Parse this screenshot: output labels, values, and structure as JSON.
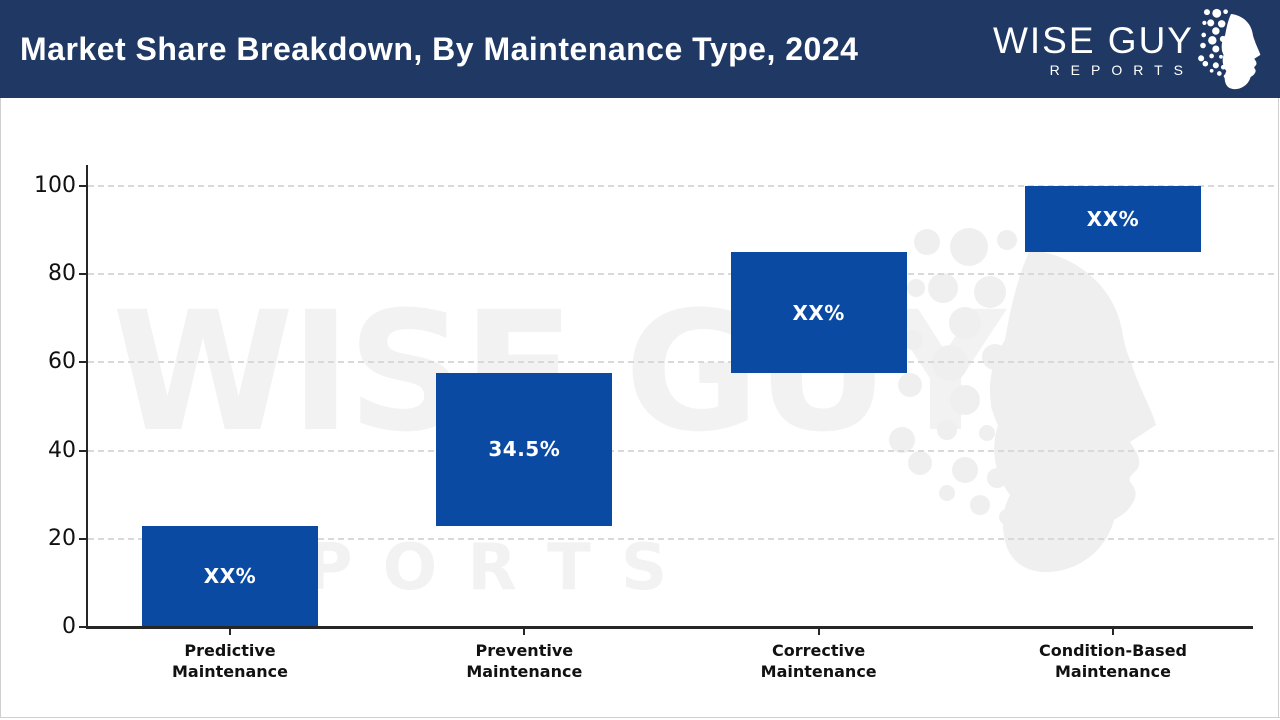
{
  "header": {
    "title": "Market Share Breakdown, By Maintenance Type, 2024",
    "logo": {
      "line1": "WISE GUY",
      "line2": "REPORTS"
    }
  },
  "watermark": {
    "line1": "WISE GUY",
    "line2": "R E P O R T S"
  },
  "colors": {
    "header_bg": "#1f3864",
    "bar": "#0b4aa2",
    "grid": "#d9d9d9",
    "axis": "#262626",
    "watermark": "#f2f2f2",
    "border": "#cfcfcf",
    "title_text": "#ffffff"
  },
  "chart_data": {
    "type": "bar",
    "subtype": "waterfall",
    "title": "Market Share Breakdown, By Maintenance Type, 2024",
    "categories": [
      "Predictive Maintenance",
      "Preventive Maintenance",
      "Corrective Maintenance",
      "Condition-Based Maintenance"
    ],
    "category_lines": [
      [
        "Predictive",
        "Maintenance"
      ],
      [
        "Preventive",
        "Maintenance"
      ],
      [
        "Corrective",
        "Maintenance"
      ],
      [
        "Condition-Based",
        "Maintenance"
      ]
    ],
    "segments": [
      {
        "category": "Predictive Maintenance",
        "label": "XX%",
        "start": 0,
        "end": 23,
        "value_estimated": 23
      },
      {
        "category": "Preventive Maintenance",
        "label": "34.5%",
        "start": 23,
        "end": 57.5,
        "value_estimated": 34.5
      },
      {
        "category": "Corrective Maintenance",
        "label": "XX%",
        "start": 57.5,
        "end": 85,
        "value_estimated": 27.5
      },
      {
        "category": "Condition-Based Maintenance",
        "label": "XX%",
        "start": 85,
        "end": 100,
        "value_estimated": 15
      }
    ],
    "ylim": [
      0,
      100
    ],
    "yticks": [
      0,
      20,
      40,
      60,
      80,
      100
    ],
    "xlabel": "",
    "ylabel": "",
    "grid": true,
    "gridline_style": "dashed",
    "legend": "none",
    "bar_color": "#0b4aa2"
  }
}
